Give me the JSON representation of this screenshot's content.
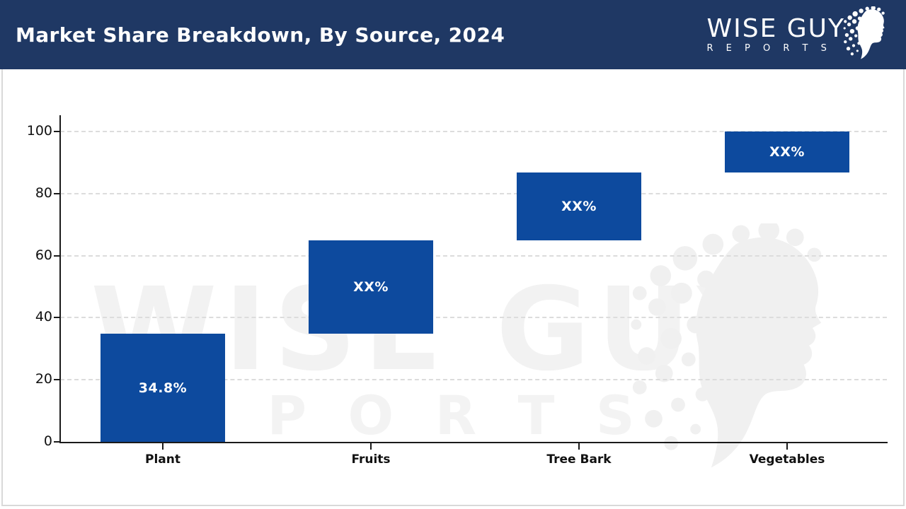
{
  "header": {
    "title": "Market Share Breakdown, By Source, 2024",
    "logo": {
      "line1": "WISE GUY",
      "line2": "R E P O R T S",
      "icon": "dotted-face-profile-icon"
    }
  },
  "watermark": {
    "line1": "WISE GUY",
    "line2": "R E P O R T S",
    "icon": "dotted-face-profile-icon"
  },
  "chart_data": {
    "type": "bar",
    "subtype": "floating-waterfall",
    "title": "Market Share Breakdown, By Source, 2024",
    "categories": [
      "Plant",
      "Fruits",
      "Tree Bark",
      "Vegetables"
    ],
    "segments": [
      {
        "category": "Plant",
        "start": 0,
        "end": 34.8,
        "label": "34.8%"
      },
      {
        "category": "Fruits",
        "start": 34.8,
        "end": 65,
        "label": "XX%"
      },
      {
        "category": "Tree Bark",
        "start": 65,
        "end": 86.8,
        "label": "XX%"
      },
      {
        "category": "Vegetables",
        "start": 86.8,
        "end": 100,
        "label": "XX%"
      }
    ],
    "y_ticks": [
      0,
      20,
      40,
      60,
      80,
      100
    ],
    "ylim": [
      0,
      105
    ],
    "xlabel": "",
    "ylabel": "",
    "grid": "horizontal-dashed",
    "legend": "none",
    "bar_color": "#0D4A9E",
    "value_label_color": "#FFFFFF"
  },
  "colors": {
    "header_bg": "#1F3864",
    "bar": "#0D4A9E",
    "axis": "#1A1A1A",
    "gridline": "#DCDCDC",
    "frame_border": "#D9D9D9",
    "watermark": "#F2F2F2"
  }
}
